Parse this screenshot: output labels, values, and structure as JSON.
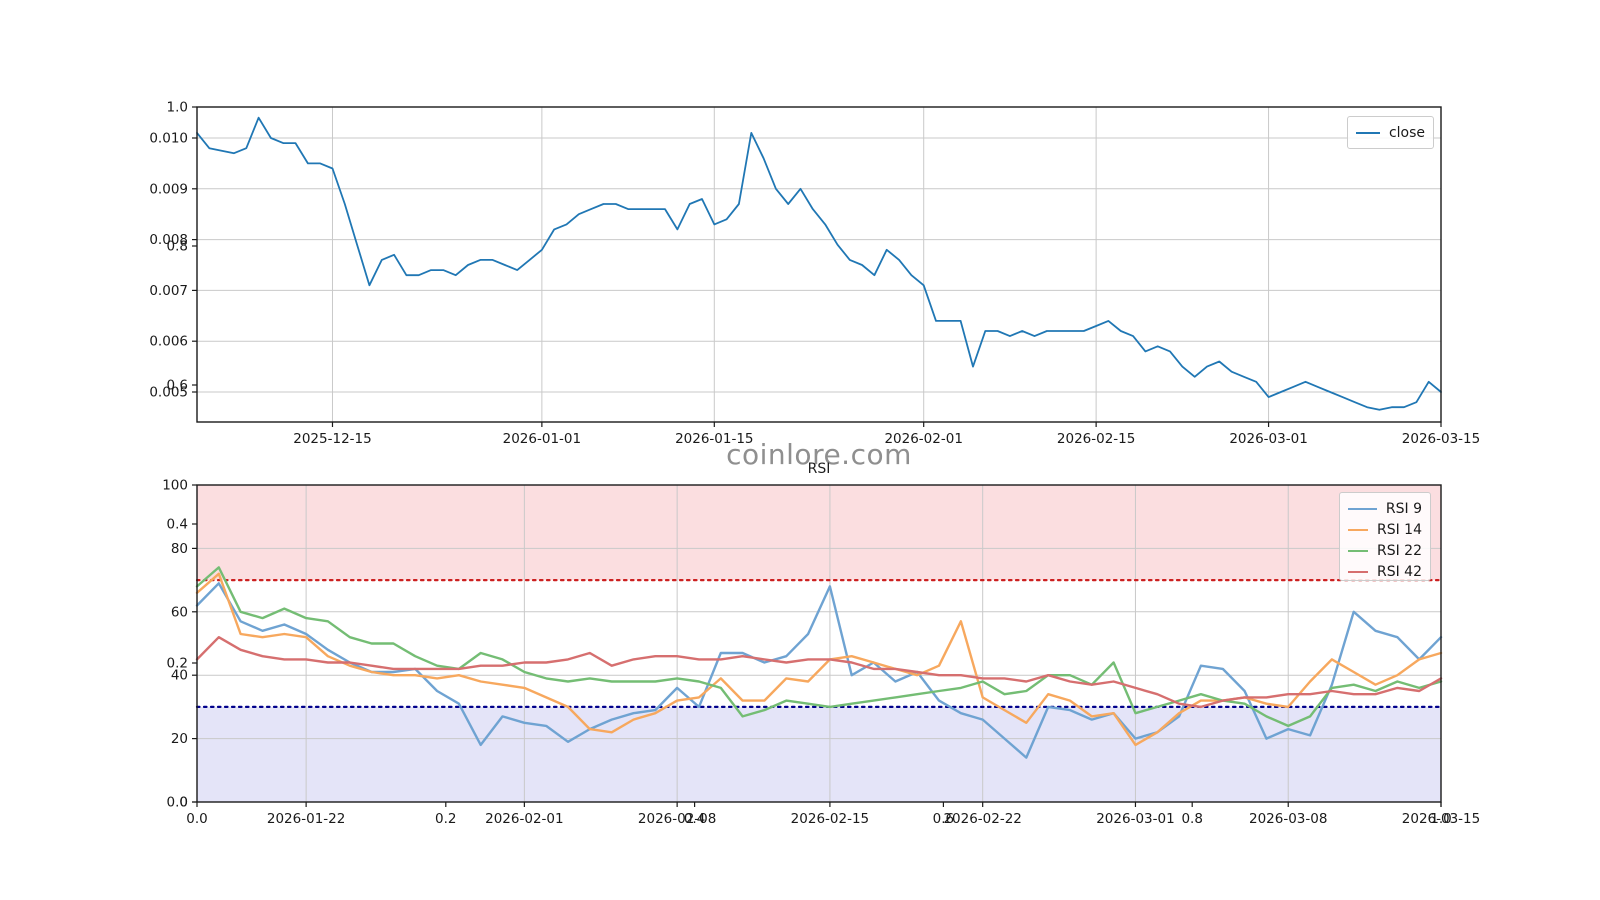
{
  "watermark": "coinlore.com",
  "rsi_panel_title": "RSI",
  "colors": {
    "close_line": "#2077b4",
    "rsi9": "#6fa3d2",
    "rsi14": "#f7a85e",
    "rsi22": "#74bd74",
    "rsi42": "#d66f6f",
    "overbought_band": "#fbdee0",
    "oversold_band": "#e4e4f8",
    "overbought_line": "#cc1f1f",
    "oversold_line": "#00008b",
    "grid": "#c9c9c9",
    "spine": "#1a1a1a",
    "tick_text": "#1a1a1a",
    "watermark_text": "#8f8f8f"
  },
  "ghost_axis": {
    "xtick_labels": [
      "0.0",
      "0.2",
      "0.4",
      "0.6",
      "0.8",
      "1.0"
    ],
    "ytick_labels": [
      "1.0",
      "0.8",
      "0.6",
      "0.4",
      "0.2",
      "0.0"
    ]
  },
  "chart_data": [
    {
      "type": "line",
      "name": "price-panel",
      "title": "",
      "legend_position": "upper right",
      "grid": true,
      "ylim": [
        0.004409,
        0.01061
      ],
      "yticks": [
        0.01,
        0.009,
        0.008,
        0.007,
        0.006,
        0.005
      ],
      "xticks": [
        "2025-12-15",
        "2026-01-01",
        "2026-01-15",
        "2026-02-01",
        "2026-02-15",
        "2026-03-01",
        "2026-03-15"
      ],
      "series": [
        {
          "name": "close",
          "color": "#2077b4",
          "start_date": "2025-12-04",
          "end_date": "2026-03-15",
          "values": [
            0.0101,
            0.0098,
            0.00975,
            0.0097,
            0.0098,
            0.0104,
            0.01,
            0.0099,
            0.0099,
            0.0095,
            0.0095,
            0.0094,
            0.0087,
            0.0079,
            0.0071,
            0.0076,
            0.0077,
            0.0073,
            0.0073,
            0.0074,
            0.0074,
            0.0073,
            0.0075,
            0.0076,
            0.0076,
            0.0075,
            0.0074,
            0.0076,
            0.0078,
            0.0082,
            0.0083,
            0.0085,
            0.0086,
            0.0087,
            0.0087,
            0.0086,
            0.0086,
            0.0086,
            0.0086,
            0.0082,
            0.0087,
            0.0088,
            0.0083,
            0.0084,
            0.0087,
            0.0101,
            0.0096,
            0.009,
            0.0087,
            0.009,
            0.0086,
            0.0083,
            0.0079,
            0.0076,
            0.0075,
            0.0073,
            0.0078,
            0.0076,
            0.0073,
            0.0071,
            0.0064,
            0.0064,
            0.0064,
            0.0055,
            0.0062,
            0.0062,
            0.0061,
            0.0062,
            0.0061,
            0.0062,
            0.0062,
            0.0062,
            0.0062,
            0.0063,
            0.0064,
            0.0062,
            0.0061,
            0.0058,
            0.0059,
            0.0058,
            0.0055,
            0.0053,
            0.0055,
            0.0056,
            0.0054,
            0.0053,
            0.0052,
            0.0049,
            0.005,
            0.0051,
            0.0052,
            0.0051,
            0.005,
            0.0049,
            0.0048,
            0.0047,
            0.00465,
            0.0047,
            0.0047,
            0.0048,
            0.0052,
            0.005
          ]
        }
      ]
    },
    {
      "type": "line",
      "name": "rsi-panel",
      "title": "RSI",
      "legend_position": "upper right",
      "grid": true,
      "ylim": [
        0,
        100
      ],
      "yticks": [
        100,
        80,
        60,
        40,
        20,
        0
      ],
      "xticks": [
        "2026-01-22",
        "2026-02-01",
        "2026-02-08",
        "2026-02-15",
        "2026-02-22",
        "2026-03-01",
        "2026-03-08",
        "2026-03-15"
      ],
      "overbought": {
        "level": 70
      },
      "oversold": {
        "level": 30
      },
      "series": [
        {
          "name": "RSI 9",
          "color": "#6fa3d2",
          "start_date": "2026-01-17",
          "end_date": "2026-03-15",
          "values": [
            62,
            69,
            57,
            54,
            56,
            53,
            48,
            44,
            41,
            41,
            42,
            35,
            31,
            18,
            27,
            25,
            24,
            19,
            23,
            26,
            28,
            29,
            36,
            30,
            47,
            47,
            44,
            46,
            53,
            68,
            40,
            44,
            38,
            41,
            32,
            28,
            26,
            20,
            14,
            30,
            29,
            26,
            28,
            20,
            22,
            27,
            43,
            42,
            35,
            20,
            23,
            21,
            37,
            60,
            54,
            52,
            45,
            52
          ]
        },
        {
          "name": "RSI 14",
          "color": "#f7a85e",
          "start_date": "2026-01-17",
          "end_date": "2026-03-15",
          "values": [
            66,
            72,
            53,
            52,
            53,
            52,
            46,
            43,
            41,
            40,
            40,
            39,
            40,
            38,
            37,
            36,
            33,
            30,
            23,
            22,
            26,
            28,
            32,
            33,
            39,
            32,
            32,
            39,
            38,
            45,
            46,
            44,
            42,
            40,
            43,
            57,
            33,
            29,
            25,
            34,
            32,
            27,
            28,
            18,
            22,
            28,
            32,
            32,
            33,
            31,
            30,
            38,
            45,
            41,
            37,
            40,
            45,
            47
          ]
        },
        {
          "name": "RSI 22",
          "color": "#74bd74",
          "start_date": "2026-01-17",
          "end_date": "2026-03-15",
          "values": [
            68,
            74,
            60,
            58,
            61,
            58,
            57,
            52,
            50,
            50,
            46,
            43,
            42,
            47,
            45,
            41,
            39,
            38,
            39,
            38,
            38,
            38,
            39,
            38,
            36,
            27,
            29,
            32,
            31,
            30,
            31,
            32,
            33,
            34,
            35,
            36,
            38,
            34,
            35,
            40,
            40,
            37,
            44,
            28,
            30,
            32,
            34,
            32,
            31,
            27,
            24,
            27,
            36,
            37,
            35,
            38,
            36,
            38
          ]
        },
        {
          "name": "RSI 42",
          "color": "#d66f6f",
          "start_date": "2026-01-17",
          "end_date": "2026-03-15",
          "values": [
            45,
            52,
            48,
            46,
            45,
            45,
            44,
            44,
            43,
            42,
            42,
            42,
            42,
            43,
            43,
            44,
            44,
            45,
            47,
            43,
            45,
            46,
            46,
            45,
            45,
            46,
            45,
            44,
            45,
            45,
            44,
            42,
            42,
            41,
            40,
            40,
            39,
            39,
            38,
            40,
            38,
            37,
            38,
            36,
            34,
            31,
            30,
            32,
            33,
            33,
            34,
            34,
            35,
            34,
            34,
            36,
            35,
            39
          ]
        }
      ]
    }
  ]
}
